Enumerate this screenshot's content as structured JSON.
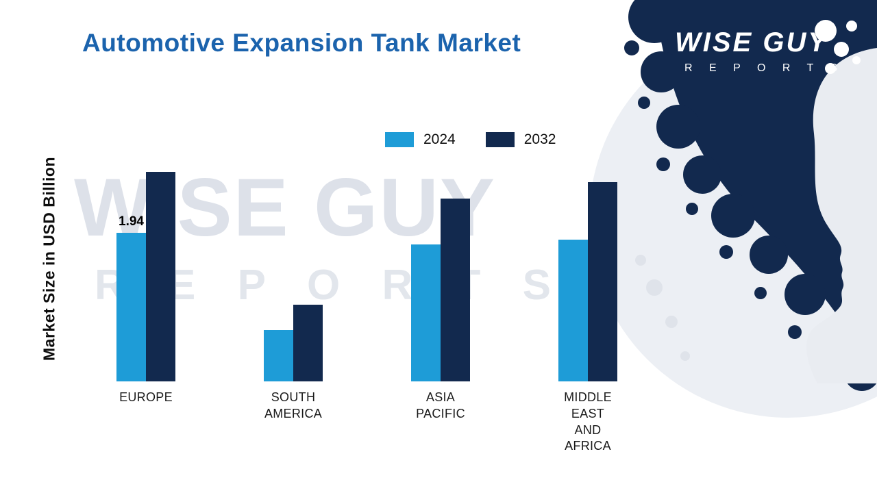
{
  "page": {
    "title": "Automotive Expansion Tank Market"
  },
  "y_axis": {
    "label": "Market Size in USD Billion"
  },
  "legend": {
    "items": [
      {
        "label": "2024",
        "color": "#1e9cd7"
      },
      {
        "label": "2032",
        "color": "#12294e"
      }
    ]
  },
  "watermark": {
    "line1": "WISE GUY",
    "line2": "R E P O R T S"
  },
  "logo": {
    "line1": "WISE GUY",
    "line2": "R E P O R T S"
  },
  "chart_data": {
    "type": "bar",
    "title": "Automotive Expansion Tank Market",
    "xlabel": "",
    "ylabel": "Market Size in USD Billion",
    "ylim": [
      0,
      3
    ],
    "grid": false,
    "legend_position": "top",
    "categories": [
      "EUROPE",
      "SOUTH AMERICA",
      "ASIA PACIFIC",
      "MIDDLE EAST AND AFRICA"
    ],
    "display_labels": [
      "EUROPE",
      "SOUTH\nAMERICA",
      "ASIA\nPACIFIC",
      "MIDDLE\nEAST\nAND\nAFRICA"
    ],
    "series": [
      {
        "name": "2024",
        "color": "#1e9cd7",
        "values": [
          1.94,
          0.67,
          1.79,
          1.85
        ]
      },
      {
        "name": "2032",
        "color": "#12294e",
        "values": [
          2.73,
          1.0,
          2.38,
          2.6
        ]
      }
    ],
    "data_labels": [
      {
        "category": "EUROPE",
        "series": "2024",
        "text": "1.94"
      }
    ]
  }
}
